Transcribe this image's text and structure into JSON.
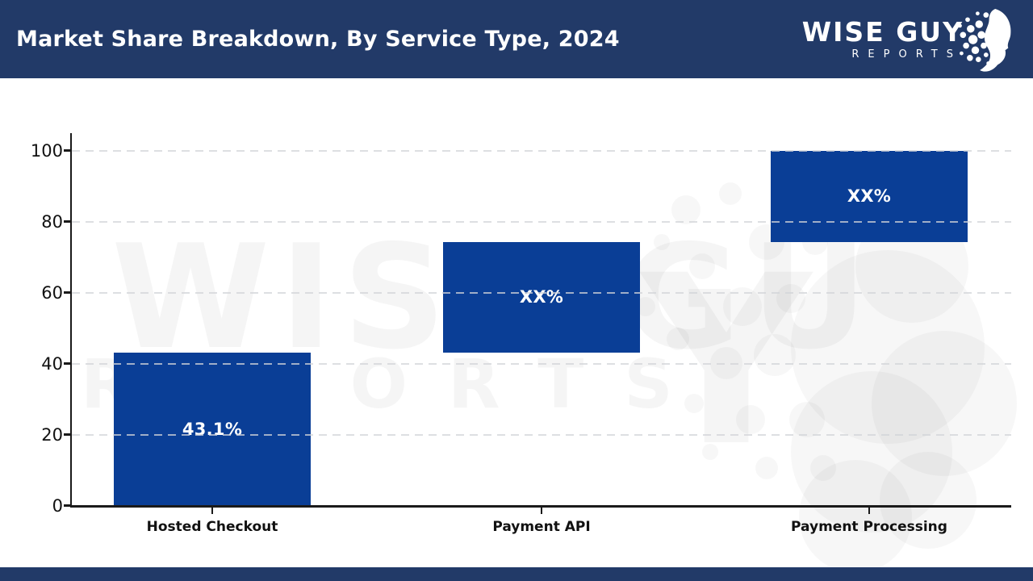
{
  "header": {
    "title": "Market Share Breakdown, By Service Type, 2024",
    "background": "#223a68",
    "logo": {
      "line1": "WISE GUY",
      "line2": "REPORTS"
    }
  },
  "watermark": {
    "line1": "WISE GU",
    "line1_tail": "Y",
    "line2": "REPORTS"
  },
  "footer": {
    "background": "#223a68"
  },
  "chart_data": {
    "type": "bar",
    "subtype": "floating-segment-waterfall",
    "title": "Market Share Breakdown, By Service Type, 2024",
    "categories": [
      "Hosted Checkout",
      "Payment API",
      "Payment Processing"
    ],
    "segments": [
      {
        "category": "Hosted Checkout",
        "start": 0,
        "end": 43.1,
        "label": "43.1%"
      },
      {
        "category": "Payment API",
        "start": 43.1,
        "end": 74.3,
        "label": "XX%"
      },
      {
        "category": "Payment Processing",
        "start": 74.3,
        "end": 100,
        "label": "XX%"
      }
    ],
    "xlabel": "",
    "ylabel": "",
    "ylim": [
      0,
      100
    ],
    "yticks": [
      0,
      20,
      40,
      60,
      80,
      100
    ],
    "grid": "horizontal dashed",
    "legend": "none",
    "bar_color": "#0a3e96",
    "bar_label_color": "#ffffff",
    "axis_color": "#1a1a1a"
  }
}
